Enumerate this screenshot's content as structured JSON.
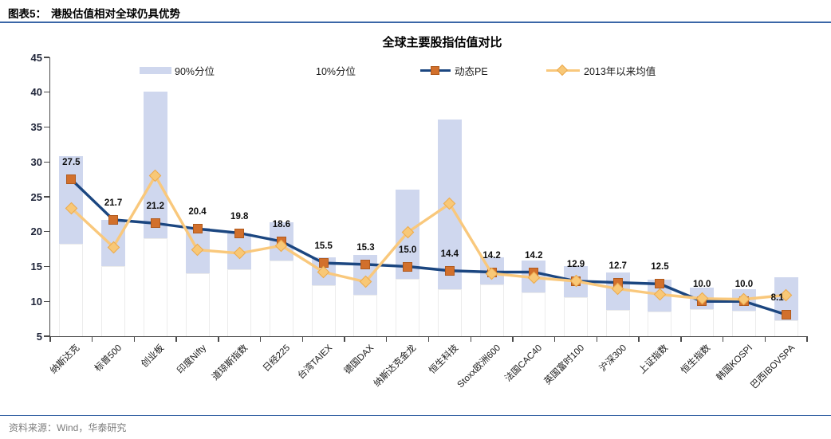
{
  "header": {
    "figure_label": "图表5：",
    "figure_title": "港股估值相对全球仍具优势"
  },
  "footer": {
    "source_text": "资料来源：Wind，华泰研究"
  },
  "colors": {
    "accent_rule": "#3a66a7",
    "bar_fill": "#cfd7ee",
    "bar_low_fill": "#ffffff",
    "bar_low_border": "#ececec",
    "pe_line": "#1b4680",
    "pe_marker": "#d2702c",
    "pe_marker_border": "#b05a1d",
    "mean_line": "#f9c87c",
    "mean_marker_fill": "#f8c877",
    "mean_marker_border": "#eba94d",
    "axis_color": "#4a4a4a",
    "source_text_color": "#7d7d7d"
  },
  "chart_data": {
    "type": "bar+line combo (floating percentile bars with two marker lines)",
    "title": "全球主要股指估值对比",
    "xlabel": "",
    "ylabel": "",
    "ylim": [
      5,
      45
    ],
    "yticks": [
      45,
      40,
      35,
      30,
      25,
      20,
      15,
      10,
      5
    ],
    "grid": false,
    "legend_position": "top-inside",
    "categories": [
      "纳斯达克",
      "标普500",
      "创业板",
      "印度Nifty",
      "道琼斯指数",
      "日经225",
      "台湾TAIEX",
      "德国DAX",
      "纳斯达克金龙",
      "恒生科技",
      "Stoxx欧洲600",
      "法国CAC40",
      "英国富时100",
      "沪深300",
      "上证指数",
      "恒生指数",
      "韩国KOSPI",
      "巴西IBOVSPA"
    ],
    "series": [
      {
        "name": "90%分位",
        "type": "range-top",
        "values": [
          30.8,
          21.7,
          40.1,
          20.5,
          19.8,
          21.3,
          16.3,
          16.7,
          26.0,
          36.1,
          16.3,
          15.9,
          15.1,
          14.1,
          13.1,
          12.0,
          11.7,
          13.5
        ]
      },
      {
        "name": "10%分位",
        "type": "range-base",
        "values": [
          18.3,
          15.1,
          19.1,
          14.0,
          14.6,
          15.9,
          12.3,
          11.0,
          13.2,
          11.8,
          12.4,
          11.3,
          10.6,
          8.8,
          8.6,
          8.9,
          8.7,
          7.3
        ]
      },
      {
        "name": "动态PE",
        "type": "line",
        "marker": "square",
        "data_labels": true,
        "values": [
          27.5,
          21.7,
          21.2,
          20.4,
          19.8,
          18.6,
          15.5,
          15.3,
          15.0,
          14.4,
          14.2,
          14.2,
          12.9,
          12.7,
          12.5,
          10.0,
          10.0,
          8.1
        ]
      },
      {
        "name": "2013年以来均值",
        "type": "line",
        "marker": "diamond",
        "values": [
          23.4,
          17.8,
          28.0,
          17.4,
          16.9,
          18.0,
          14.2,
          12.8,
          19.9,
          24.0,
          14.0,
          13.4,
          12.9,
          11.8,
          11.0,
          10.4,
          10.3,
          10.9
        ]
      }
    ],
    "label_dx": [
      0,
      0,
      0,
      0,
      0,
      0,
      0,
      0,
      0,
      0,
      0,
      0,
      0,
      0,
      0,
      0,
      0,
      -11
    ]
  }
}
